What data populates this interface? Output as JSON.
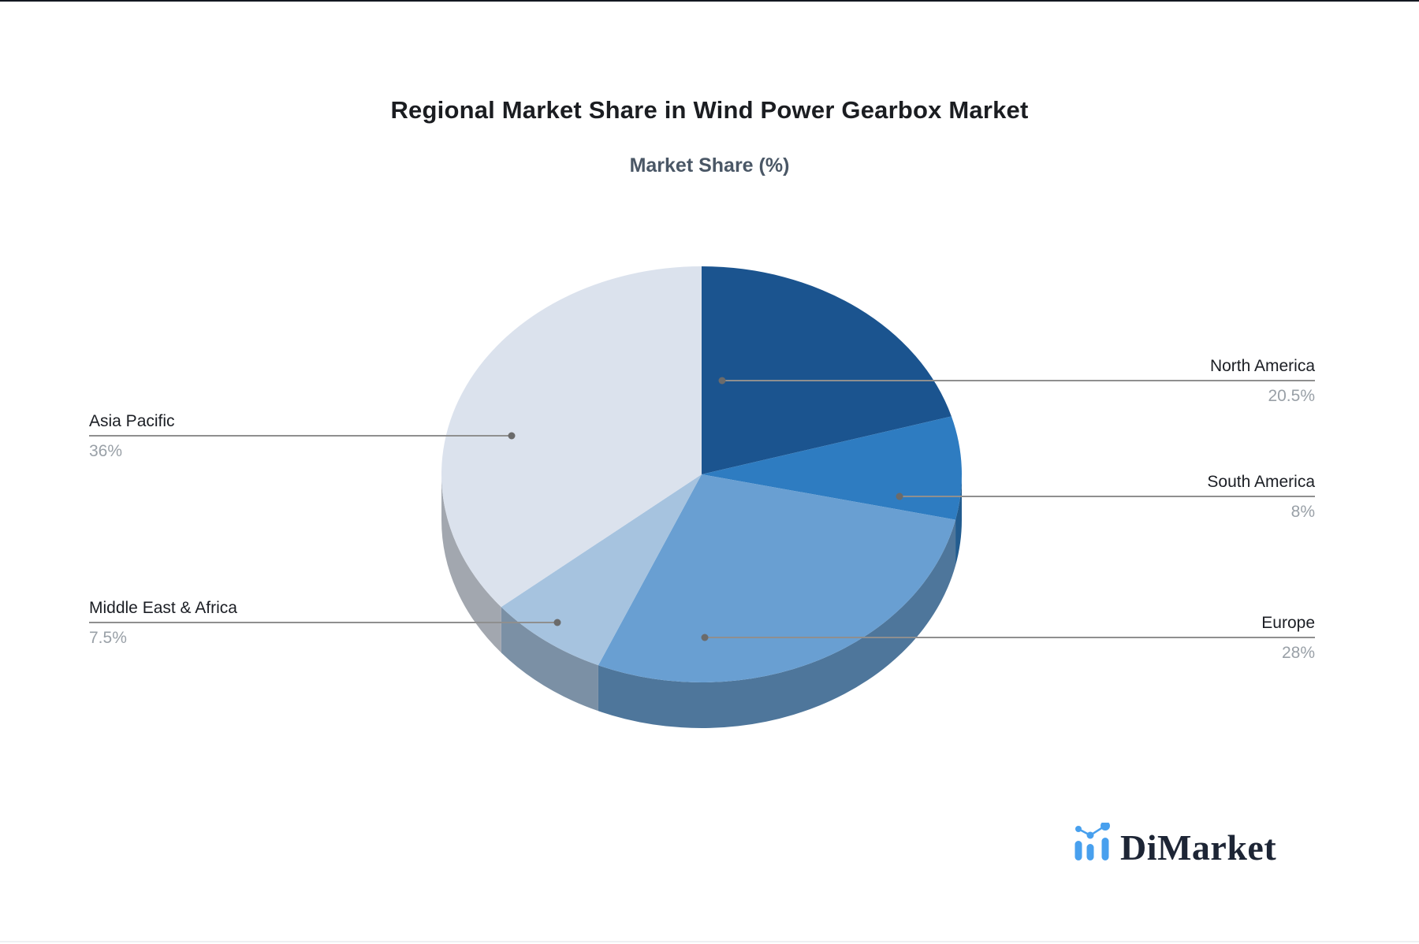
{
  "chart_data": {
    "type": "pie",
    "style": "3d-depth",
    "title": "Regional Market Share in Wind Power Gearbox Market",
    "subtitle": "Market Share (%)",
    "unit": "%",
    "start_angle_deg": 0,
    "direction": "clockwise",
    "slices": [
      {
        "label": "North America",
        "value": 20.5,
        "display": "20.5%",
        "color": "#1b548f"
      },
      {
        "label": "South America",
        "value": 8,
        "display": "8%",
        "color": "#2e7cc1"
      },
      {
        "label": "Europe",
        "value": 28,
        "display": "28%",
        "color": "#699fd2"
      },
      {
        "label": "Middle East & Africa",
        "value": 7.5,
        "display": "7.5%",
        "color": "#a6c3df"
      },
      {
        "label": "Asia Pacific",
        "value": 36,
        "display": "36%",
        "color": "#dbe2ed"
      }
    ],
    "leader_line_color": "#8f8f8f",
    "label_name_color": "#1b1e24",
    "label_value_color": "#99a0a7"
  },
  "branding": {
    "logo_text": "DiMarket",
    "logo_text_color": "#1d2535",
    "icon_color": "#48a0ee"
  }
}
